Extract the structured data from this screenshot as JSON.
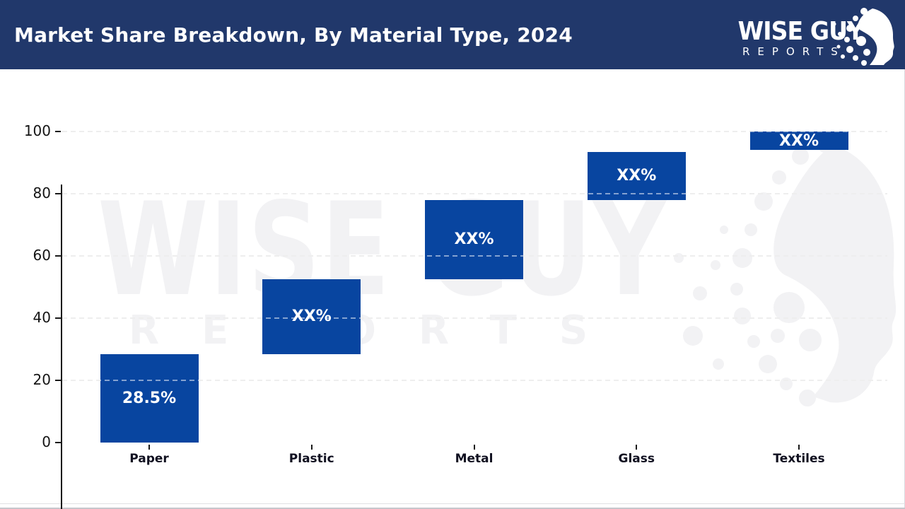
{
  "header": {
    "title": "Market Share Breakdown, By Material Type, 2024",
    "bg_color": "#21386b"
  },
  "logo": {
    "line1": "WISE GUY",
    "line2": "REPORTS"
  },
  "watermark": {
    "line1": "WISE GUY",
    "line2": "REPORTS"
  },
  "chart_data": {
    "type": "bar",
    "subtype": "waterfall",
    "title": "Market Share Breakdown, By Material Type, 2024",
    "categories": [
      "Paper",
      "Plastic",
      "Metal",
      "Glass",
      "Textiles"
    ],
    "segments": [
      {
        "label": "Paper",
        "start": 0,
        "end": 28.5,
        "value_label": "28.5%"
      },
      {
        "label": "Plastic",
        "start": 28.5,
        "end": 52.5,
        "value_label": "XX%"
      },
      {
        "label": "Metal",
        "start": 52.5,
        "end": 78,
        "value_label": "XX%"
      },
      {
        "label": "Glass",
        "start": 78,
        "end": 93.5,
        "value_label": "XX%"
      },
      {
        "label": "Textiles",
        "start": 94,
        "end": 100,
        "value_label": "XX%"
      }
    ],
    "yticks": [
      "0",
      "20",
      "40",
      "60",
      "80",
      "100"
    ],
    "ylim": [
      0,
      105
    ],
    "xlabel": "",
    "ylabel": "",
    "bar_color": "#0845a0",
    "grid": "dashed horizontal",
    "legend": "none"
  }
}
